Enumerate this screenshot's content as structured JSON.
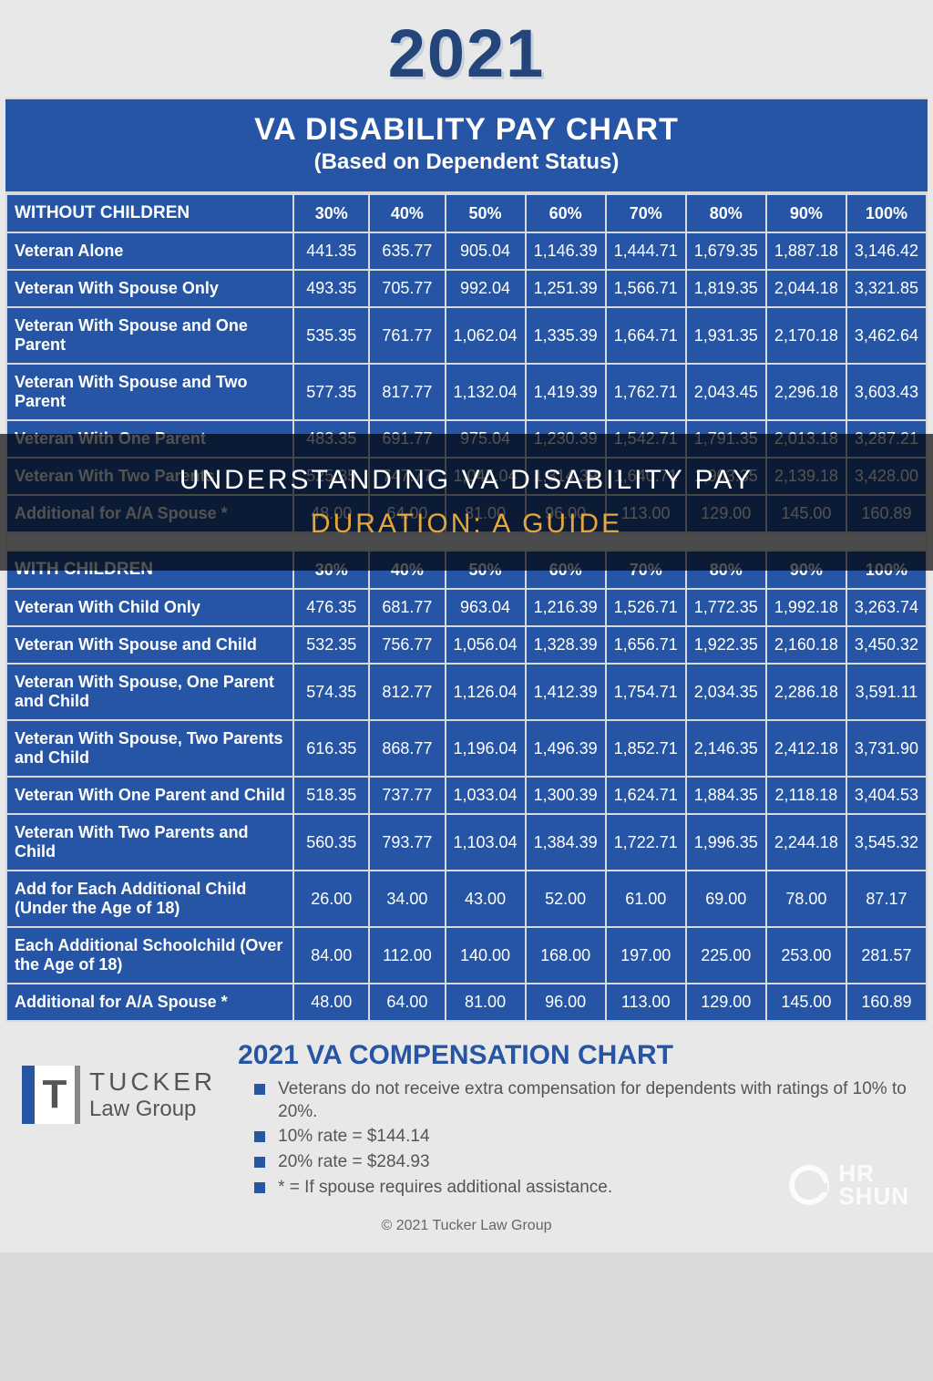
{
  "colors": {
    "page_bg": "#e8e8e8",
    "cell_bg": "#2655a5",
    "border_color": "#d9d9d9",
    "year_color": "#23457a",
    "overlay_bg": "rgba(0,0,0,0.68)",
    "overlay_accent": "#e8a53a",
    "footer_text": "#555555"
  },
  "header": {
    "year": "2021",
    "title": "VA DISABILITY PAY CHART",
    "subtitle": "(Based on Dependent Status)"
  },
  "columns": [
    "30%",
    "40%",
    "50%",
    "60%",
    "70%",
    "80%",
    "90%",
    "100%"
  ],
  "section1": {
    "heading": "WITHOUT CHILDREN",
    "rows": [
      {
        "label": "Veteran Alone",
        "vals": [
          "441.35",
          "635.77",
          "905.04",
          "1,146.39",
          "1,444.71",
          "1,679.35",
          "1,887.18",
          "3,146.42"
        ]
      },
      {
        "label": "Veteran With Spouse Only",
        "vals": [
          "493.35",
          "705.77",
          "992.04",
          "1,251.39",
          "1,566.71",
          "1,819.35",
          "2,044.18",
          "3,321.85"
        ]
      },
      {
        "label": "Veteran With Spouse and One Parent",
        "vals": [
          "535.35",
          "761.77",
          "1,062.04",
          "1,335.39",
          "1,664.71",
          "1,931.35",
          "2,170.18",
          "3,462.64"
        ]
      },
      {
        "label": "Veteran With Spouse and Two Parent",
        "vals": [
          "577.35",
          "817.77",
          "1,132.04",
          "1,419.39",
          "1,762.71",
          "2,043.45",
          "2,296.18",
          "3,603.43"
        ]
      },
      {
        "label": "Veteran With One Parent",
        "vals": [
          "483.35",
          "691.77",
          "975.04",
          "1,230.39",
          "1,542.71",
          "1,791.35",
          "2,013.18",
          "3,287.21"
        ]
      },
      {
        "label": "Veteran With Two Parents",
        "vals": [
          "525.35",
          "747.77",
          "1,045.04",
          "1,314.39",
          "1,640.71",
          "1,903.35",
          "2,139.18",
          "3,428.00"
        ]
      },
      {
        "label": "Additional for A/A Spouse *",
        "vals": [
          "48.00",
          "64.00",
          "81.00",
          "96.00",
          "113.00",
          "129.00",
          "145.00",
          "160.89"
        ]
      }
    ]
  },
  "section2": {
    "heading": "WITH CHILDREN",
    "rows": [
      {
        "label": "Veteran With Child Only",
        "vals": [
          "476.35",
          "681.77",
          "963.04",
          "1,216.39",
          "1,526.71",
          "1,772.35",
          "1,992.18",
          "3,263.74"
        ]
      },
      {
        "label": "Veteran With Spouse and Child",
        "vals": [
          "532.35",
          "756.77",
          "1,056.04",
          "1,328.39",
          "1,656.71",
          "1,922.35",
          "2,160.18",
          "3,450.32"
        ]
      },
      {
        "label": "Veteran With Spouse, One Parent and Child",
        "vals": [
          "574.35",
          "812.77",
          "1,126.04",
          "1,412.39",
          "1,754.71",
          "2,034.35",
          "2,286.18",
          "3,591.11"
        ]
      },
      {
        "label": "Veteran With Spouse, Two Parents and Child",
        "vals": [
          "616.35",
          "868.77",
          "1,196.04",
          "1,496.39",
          "1,852.71",
          "2,146.35",
          "2,412.18",
          "3,731.90"
        ]
      },
      {
        "label": "Veteran With One Parent and Child",
        "vals": [
          "518.35",
          "737.77",
          "1,033.04",
          "1,300.39",
          "1,624.71",
          "1,884.35",
          "2,118.18",
          "3,404.53"
        ]
      },
      {
        "label": "Veteran With Two Parents and Child",
        "vals": [
          "560.35",
          "793.77",
          "1,103.04",
          "1,384.39",
          "1,722.71",
          "1,996.35",
          "2,244.18",
          "3,545.32"
        ]
      },
      {
        "label": "Add for Each Additional Child (Under the Age of 18)",
        "vals": [
          "26.00",
          "34.00",
          "43.00",
          "52.00",
          "61.00",
          "69.00",
          "78.00",
          "87.17"
        ]
      },
      {
        "label": "Each Additional Schoolchild (Over the Age of 18)",
        "vals": [
          "84.00",
          "112.00",
          "140.00",
          "168.00",
          "197.00",
          "225.00",
          "253.00",
          "281.57"
        ]
      },
      {
        "label": "Additional for A/A Spouse *",
        "vals": [
          "48.00",
          "64.00",
          "81.00",
          "96.00",
          "113.00",
          "129.00",
          "145.00",
          "160.89"
        ]
      }
    ]
  },
  "footer": {
    "logo_letter": "T",
    "logo_line1": "TUCKER",
    "logo_line2": "Law Group",
    "title": "2021 VA COMPENSATION CHART",
    "bullets": [
      "Veterans do not receive extra compensation for dependents with ratings of 10% to 20%.",
      "10% rate = $144.14",
      "20% rate = $284.93",
      "* = If spouse requires additional assistance."
    ],
    "copyright": "© 2021 Tucker Law Group"
  },
  "overlay": {
    "line1": "UNDERSTANDING VA DISABILITY PAY",
    "line2": "DURATION: A GUIDE"
  },
  "watermark": {
    "line1": "HR",
    "line2": "SHUN"
  }
}
